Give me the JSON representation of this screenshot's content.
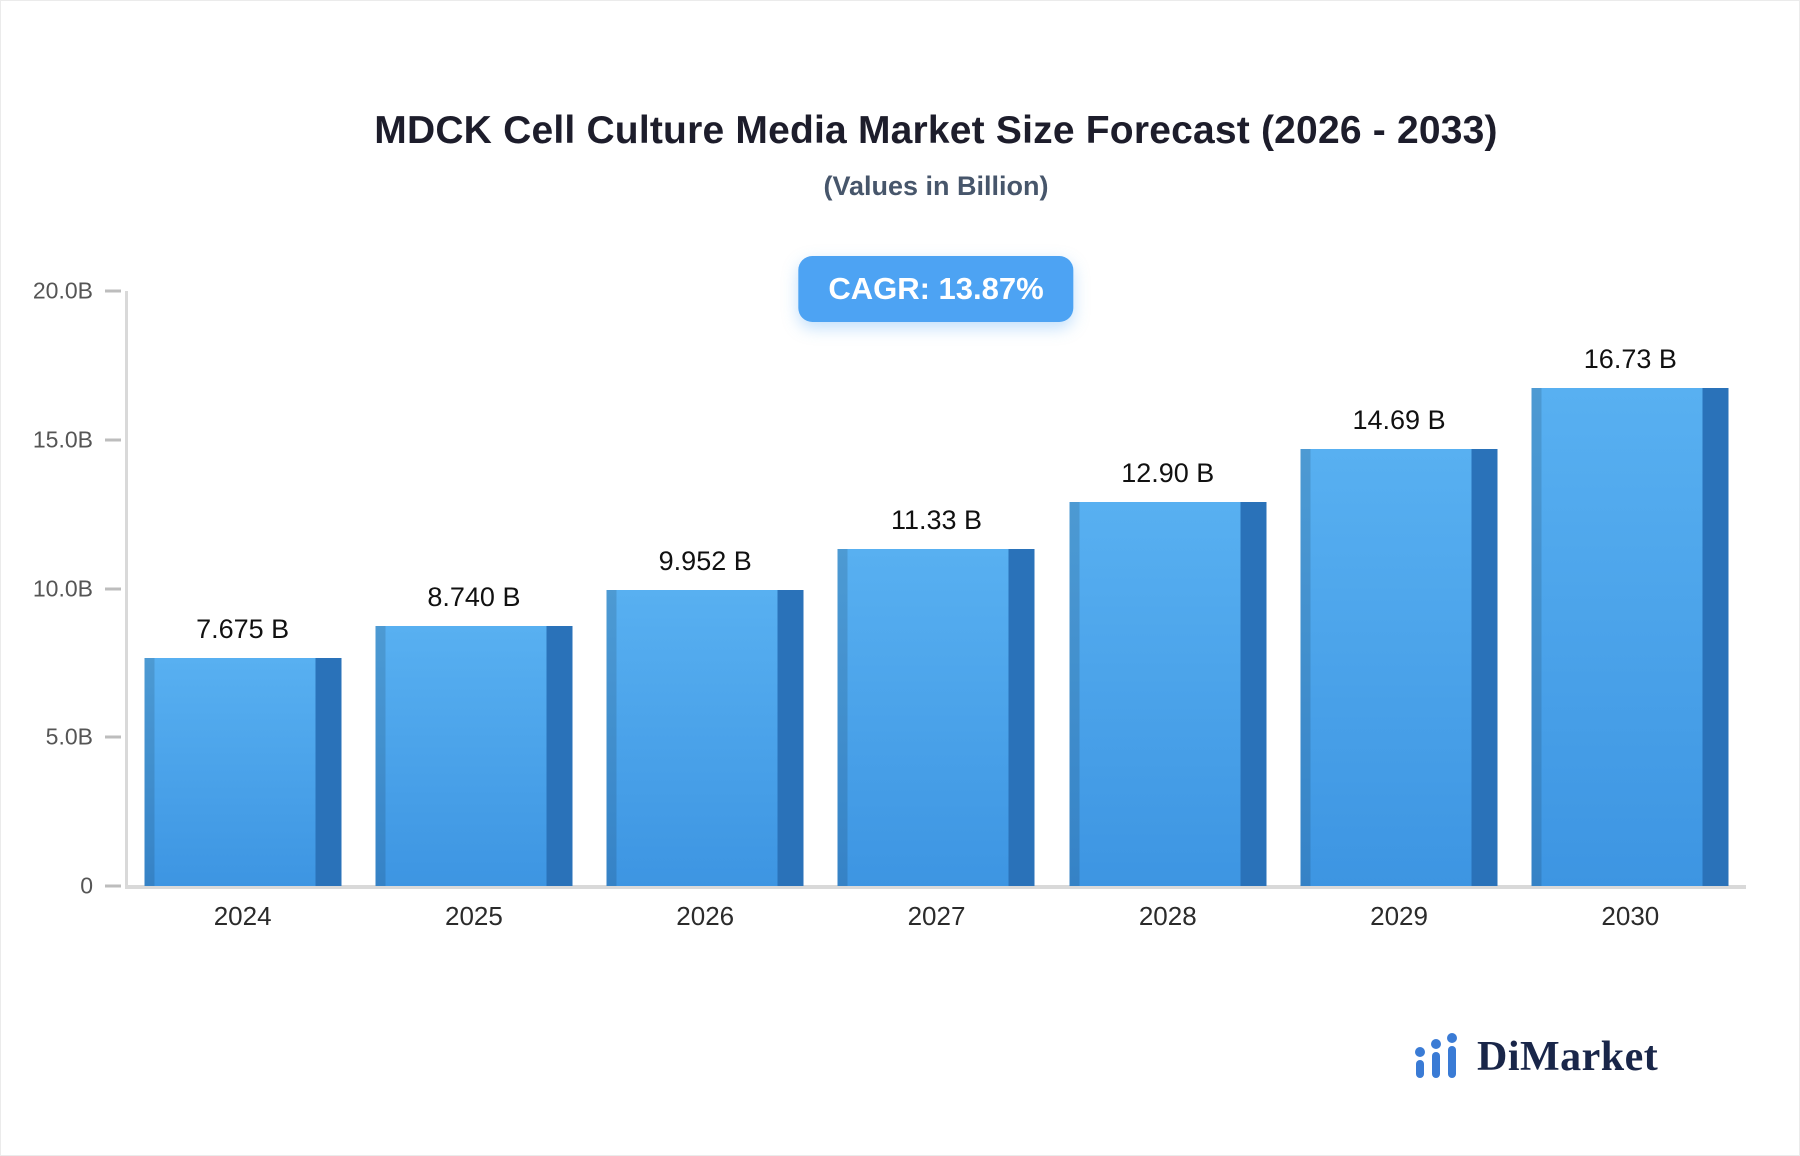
{
  "chart_data": {
    "type": "bar",
    "title": "MDCK Cell Culture Media Market Size Forecast (2026 - 2033)",
    "subtitle": "(Values in Billion)",
    "badge_label": "CAGR: 13.87%",
    "categories": [
      "2024",
      "2025",
      "2026",
      "2027",
      "2028",
      "2029",
      "2030"
    ],
    "values": [
      7.675,
      8.74,
      9.952,
      11.33,
      12.9,
      14.69,
      16.73
    ],
    "value_labels": [
      "7.675 B",
      "8.740 B",
      "9.952 B",
      "11.33 B",
      "12.90 B",
      "14.69 B",
      "16.73 B"
    ],
    "xlabel": "",
    "ylabel": "",
    "ylim": [
      0,
      20
    ],
    "yticks": [
      0,
      5,
      10,
      15,
      20
    ],
    "ytick_labels": [
      "0",
      "5.0B",
      "10.0B",
      "15.0B",
      "20.0B"
    ],
    "grid": false,
    "legend_position": "none",
    "colors": {
      "bar_face_top": "#58b0f1",
      "bar_face_bottom": "#3d95e2",
      "bar_side": "#2a72b9",
      "bar_edge_shade": "rgba(0,0,0,0.12)",
      "badge_bg": "#4da3f3",
      "badge_text": "#ffffff",
      "title_color": "#1d1d2b",
      "subtitle_color": "#47566b",
      "axis_color": "#d9d9d9",
      "tick_label_color": "#555555",
      "value_label_color": "#111111",
      "logo_blue": "#3a7bd5",
      "logo_text_color": "#192649"
    }
  },
  "logo": {
    "text": "DiMarket"
  }
}
